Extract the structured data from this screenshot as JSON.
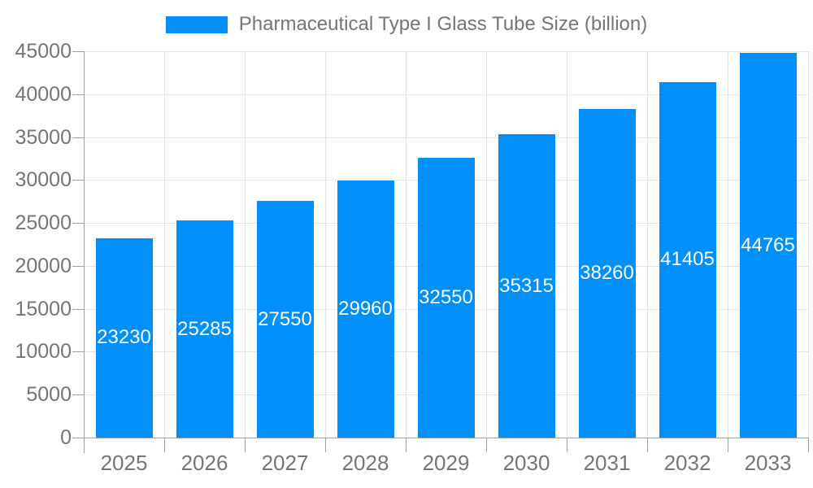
{
  "chart_data": {
    "type": "bar",
    "title": "Pharmaceutical Type I Glass Tube Size (billion)",
    "series_name": "Pharmaceutical Type I Glass Tube Size (billion)",
    "categories": [
      "2025",
      "2026",
      "2027",
      "2028",
      "2029",
      "2030",
      "2031",
      "2032",
      "2033"
    ],
    "values": [
      23230,
      25285,
      27550,
      29960,
      32550,
      35315,
      38260,
      41405,
      44765
    ],
    "data_labels": [
      "23230",
      "25285",
      "27550",
      "29960",
      "32550",
      "35315",
      "38260",
      "41405",
      "44765"
    ],
    "xlabel": "",
    "ylabel": "",
    "ylim": [
      0,
      45000
    ],
    "ytick_step": 5000,
    "ytick_labels": [
      "0",
      "5000",
      "10000",
      "15000",
      "20000",
      "25000",
      "30000",
      "35000",
      "40000",
      "45000"
    ],
    "grid": true,
    "legend_position": "top",
    "data_label_position": "center-inside",
    "colors": {
      "bar": "#008ffb",
      "data_label": "#ffffff",
      "axis_text": "#757575",
      "grid_line": "#e3e3e3",
      "axis_line": "#9e9e9e",
      "background": "#ffffff"
    }
  }
}
